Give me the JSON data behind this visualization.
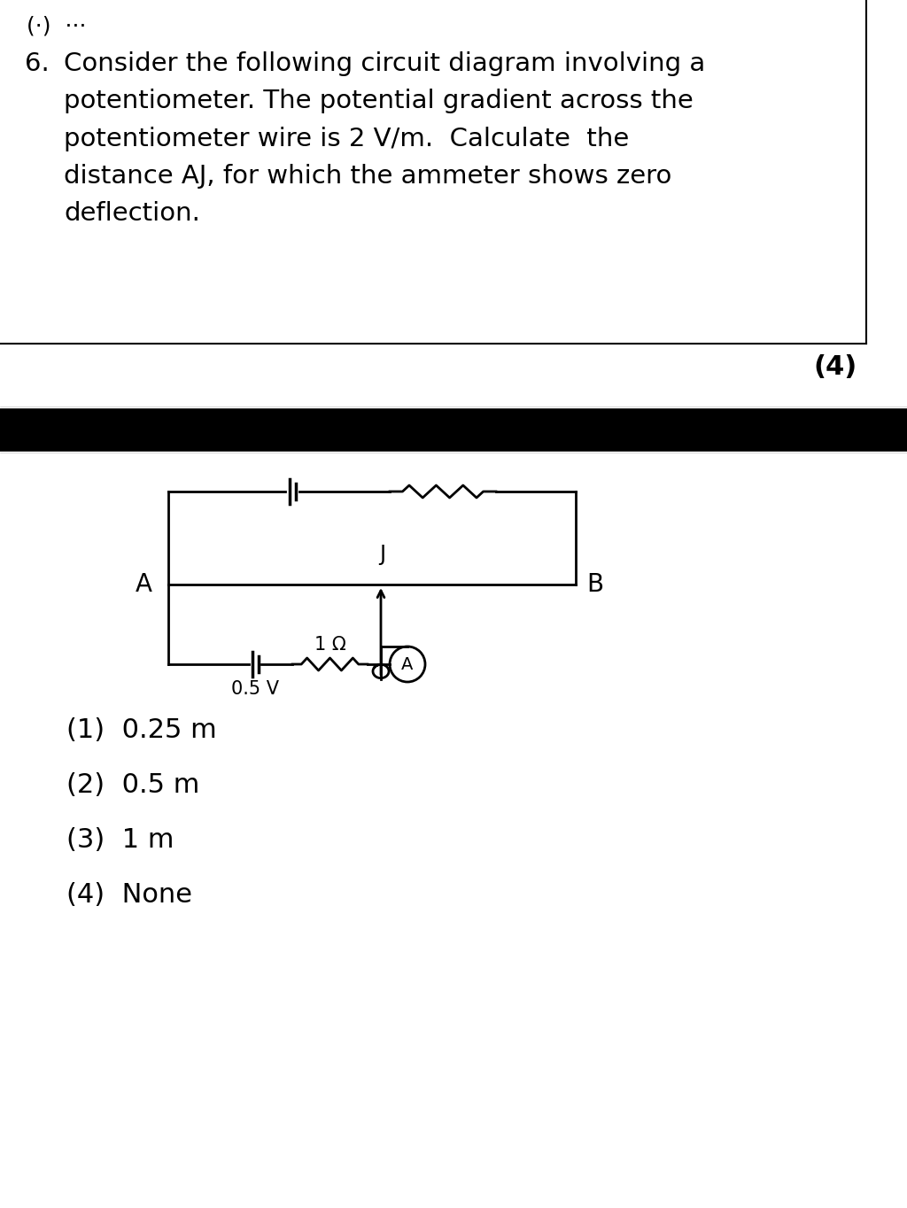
{
  "title_prefix": "6.",
  "question_text": "Consider the following circuit diagram involving a\npotentiometer. The potential gradient across the\npotentiometer wire is 2 V/m.  Calculate  the\ndistance AJ, for which the ammeter shows zero\ndeflection.",
  "marks": "(4)",
  "black_bar_color": "#000000",
  "bg_color": "#ffffff",
  "text_color": "#000000",
  "options": [
    "(1)  0.25 m",
    "(2)  0.5 m",
    "(3)  1 m",
    "(4)  None"
  ],
  "label_A": "A",
  "label_B": "B",
  "label_J": "J",
  "label_battery_voltage": "0.5 V",
  "label_resistor": "1 Ω",
  "label_ammeter": "A",
  "question_font_size": 21,
  "options_font_size": 22,
  "marks_font_size": 22,
  "header_tag": "(·)  ···"
}
